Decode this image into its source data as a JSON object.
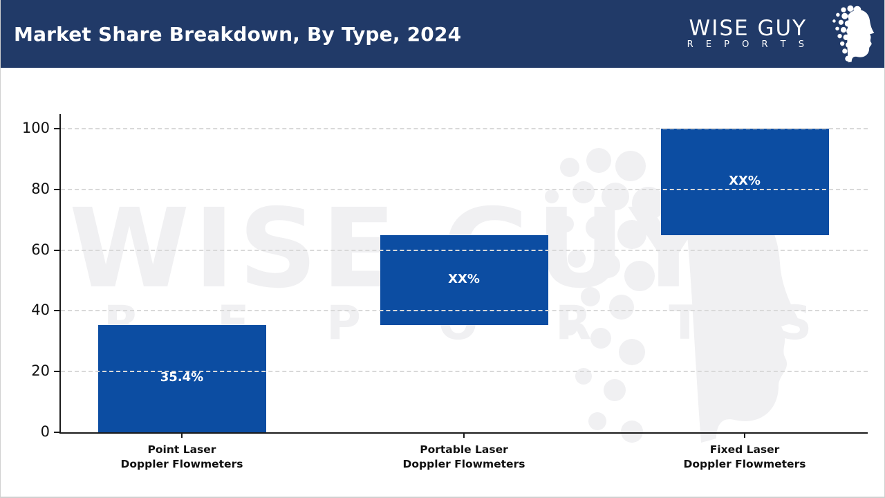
{
  "header": {
    "title": "Market Share Breakdown, By Type, 2024",
    "bg_color": "#213A68",
    "logo": {
      "line1": "WISE GUY",
      "line2": "R E P O R T S"
    }
  },
  "watermark": {
    "line1": "WISE GUY",
    "line2": "R E P O R T S"
  },
  "chart_data": {
    "type": "bar",
    "subtype": "floating-stacked-segments",
    "title": "Market Share Breakdown, By Type, 2024",
    "categories": [
      [
        "Point Laser",
        "Doppler Flowmeters"
      ],
      [
        "Portable Laser",
        "Doppler Flowmeters"
      ],
      [
        "Fixed Laser",
        "Doppler Flowmeters"
      ]
    ],
    "bars": [
      {
        "category": "Point Laser Doppler Flowmeters",
        "start": 0,
        "end": 35.4,
        "label": "35.4%"
      },
      {
        "category": "Portable Laser Doppler Flowmeters",
        "start": 35.4,
        "end": 65,
        "label": "XX%"
      },
      {
        "category": "Fixed Laser Doppler Flowmeters",
        "start": 65,
        "end": 100,
        "label": "XX%"
      }
    ],
    "yticks": [
      0,
      20,
      40,
      60,
      80,
      100
    ],
    "ylim": [
      0,
      104.8
    ],
    "xlabel": "",
    "ylabel": "",
    "grid": "horizontal-dashed",
    "legend": "none",
    "bar_color": "#0C4DA2",
    "bar_label_color": "#FFFFFF",
    "grid_color": "#D9D9D9",
    "axis_color": "#1A1A1A"
  }
}
